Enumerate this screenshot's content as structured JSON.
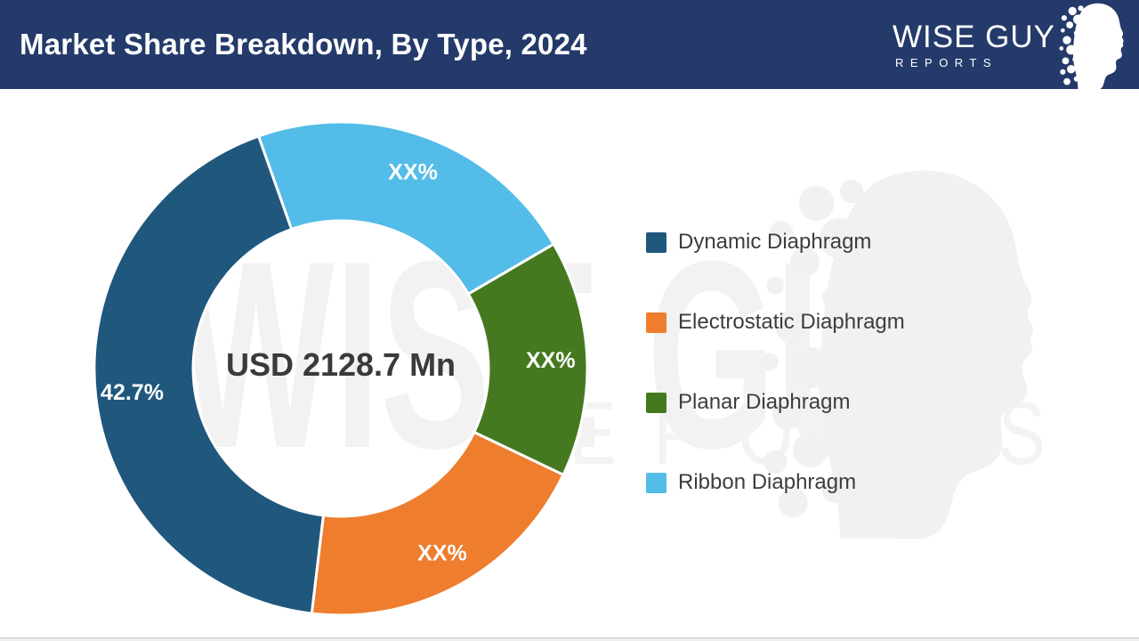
{
  "header": {
    "title": "Market Share Breakdown, By Type, 2024"
  },
  "brand": {
    "wordmark": "WISE GUY",
    "wordmark_sub": "REPORTS"
  },
  "watermark": {
    "line1": "WISE GUY",
    "line2": "REPORTS"
  },
  "chart_data": {
    "type": "pie",
    "subtype": "donut",
    "title": "Market Share Breakdown, By Type, 2024",
    "center_label": "USD 2128.7 Mn",
    "total_value": "USD 2128.7 Mn",
    "inner_radius_ratio": 0.6,
    "start_angle_deg_clockwise_from_top": -19.5,
    "legend_position": "right",
    "slices": [
      {
        "name": "Ribbon Diaphragm",
        "pct": 22.0,
        "label": "XX%",
        "color": "#54BCE8"
      },
      {
        "name": "Planar Diaphragm",
        "pct": 15.5,
        "label": "XX%",
        "color": "#45791F"
      },
      {
        "name": "Electrostatic Diaphragm",
        "pct": 19.8,
        "label": "XX%",
        "color": "#EE7D2E"
      },
      {
        "name": "Dynamic Diaphragm",
        "pct": 42.7,
        "label": "42.7%",
        "color": "#20577D"
      }
    ],
    "legend": [
      {
        "label": "Dynamic Diaphragm",
        "color": "#20577D"
      },
      {
        "label": "Electrostatic Diaphragm",
        "color": "#EE7D2E"
      },
      {
        "label": "Planar Diaphragm",
        "color": "#45791F"
      },
      {
        "label": "Ribbon Diaphragm",
        "color": "#54BCE8"
      }
    ]
  }
}
